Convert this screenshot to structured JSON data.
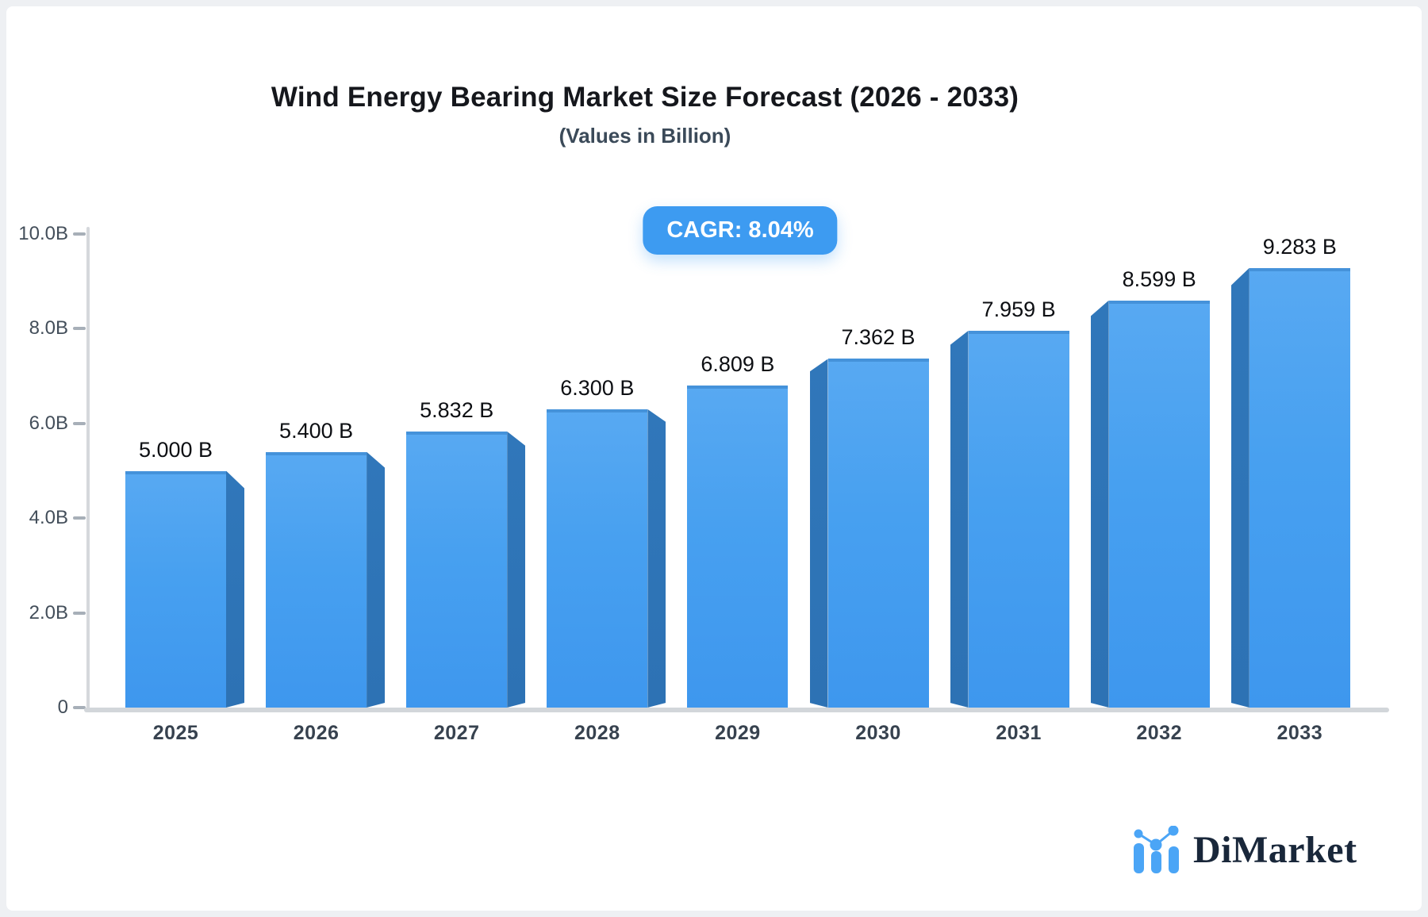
{
  "header": {
    "title": "Wind Energy Bearing Market Size Forecast (2026 - 2033)",
    "subtitle": "(Values in Billion)",
    "cagr_label": "CAGR: 8.04%"
  },
  "chart_data": {
    "type": "bar",
    "title": "Wind Energy Bearing Market Size Forecast (2026 - 2033)",
    "subtitle": "(Values in Billion)",
    "cagr": "8.04%",
    "categories": [
      "2025",
      "2026",
      "2027",
      "2028",
      "2029",
      "2030",
      "2031",
      "2032",
      "2033"
    ],
    "values": [
      5.0,
      5.4,
      5.832,
      6.3,
      6.809,
      7.362,
      7.959,
      8.599,
      9.283
    ],
    "value_labels": [
      "5.000 B",
      "5.400 B",
      "5.832 B",
      "6.300 B",
      "6.809 B",
      "7.362 B",
      "7.959 B",
      "8.599 B",
      "9.283 B"
    ],
    "xlabel": "",
    "ylabel": "",
    "ylim": [
      0,
      10
    ],
    "yticks": [
      {
        "value": 0,
        "label": "0"
      },
      {
        "value": 2,
        "label": "2.0B"
      },
      {
        "value": 4,
        "label": "4.0B"
      },
      {
        "value": 6,
        "label": "6.0B"
      },
      {
        "value": 8,
        "label": "8.0B"
      },
      {
        "value": 10,
        "label": "10.0B"
      }
    ],
    "grid": false,
    "legend": false,
    "bar_color": "#419BEF",
    "bar_side_color": "#2E73B6",
    "style": "3d-perspective-columns"
  },
  "footer": {
    "brand": "DiMarket",
    "logo_icon": "mini-bar-chart-icon",
    "logo_color": "#4BA5F6"
  }
}
